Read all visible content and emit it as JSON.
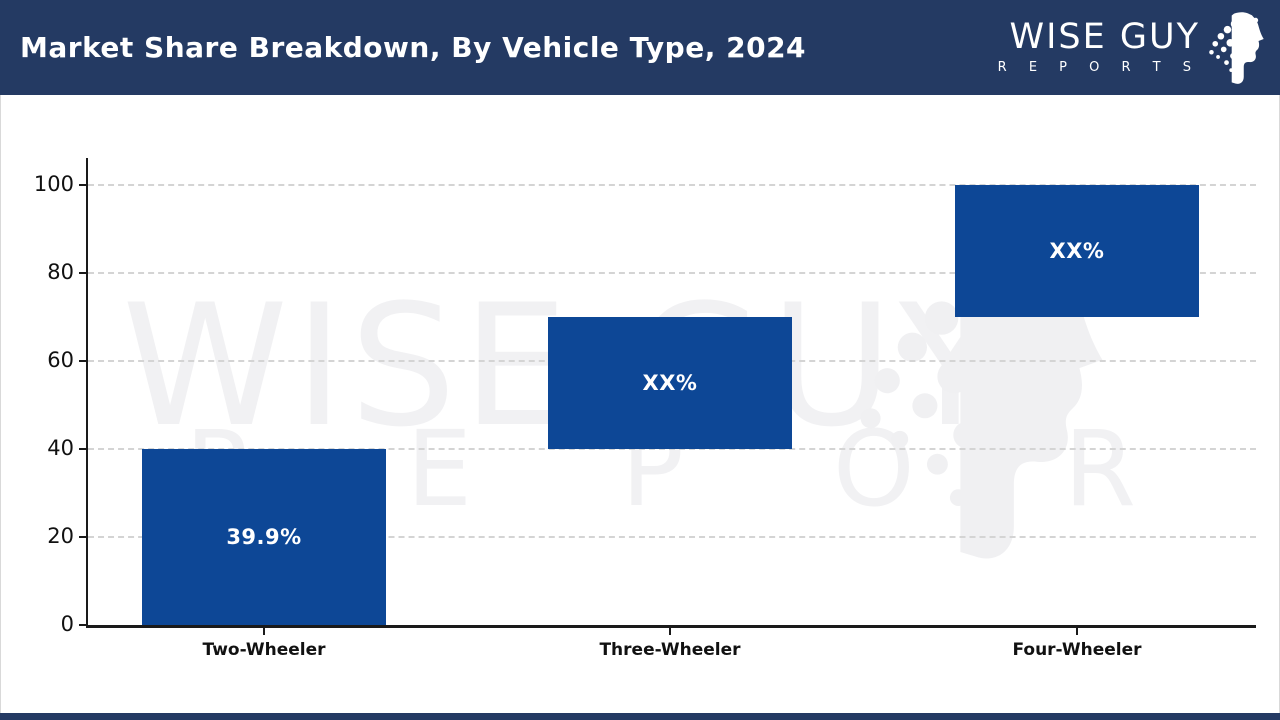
{
  "header": {
    "title": "Market Share Breakdown, By Vehicle Type, 2024",
    "logo": {
      "line1": "WISE GUY",
      "line2": "R E P O R T S"
    },
    "bg_color": "#243a63"
  },
  "watermark": {
    "line1": "WISE GUY",
    "line2": "R E P O R T S"
  },
  "chart_data": {
    "type": "bar",
    "subtype": "floating-waterfall",
    "title": "Market Share Breakdown, By Vehicle Type, 2024",
    "categories": [
      "Two-Wheeler",
      "Three-Wheeler",
      "Four-Wheeler"
    ],
    "segments": [
      {
        "category": "Two-Wheeler",
        "start": 0,
        "end": 39.9,
        "label": "39.9%"
      },
      {
        "category": "Three-Wheeler",
        "start": 40,
        "end": 70,
        "label": "XX%"
      },
      {
        "category": "Four-Wheeler",
        "start": 70,
        "end": 100,
        "label": "XX%"
      }
    ],
    "xlabel": "",
    "ylabel": "",
    "yticks": [
      0,
      20,
      40,
      60,
      80,
      100
    ],
    "ylim": [
      0,
      100
    ],
    "grid": "horizontal-dashed",
    "legend": "none",
    "bar_color": "#0d4796",
    "bar_label_color": "#ffffff",
    "unit": "%"
  },
  "footer": {
    "bg_color": "#243a63"
  }
}
